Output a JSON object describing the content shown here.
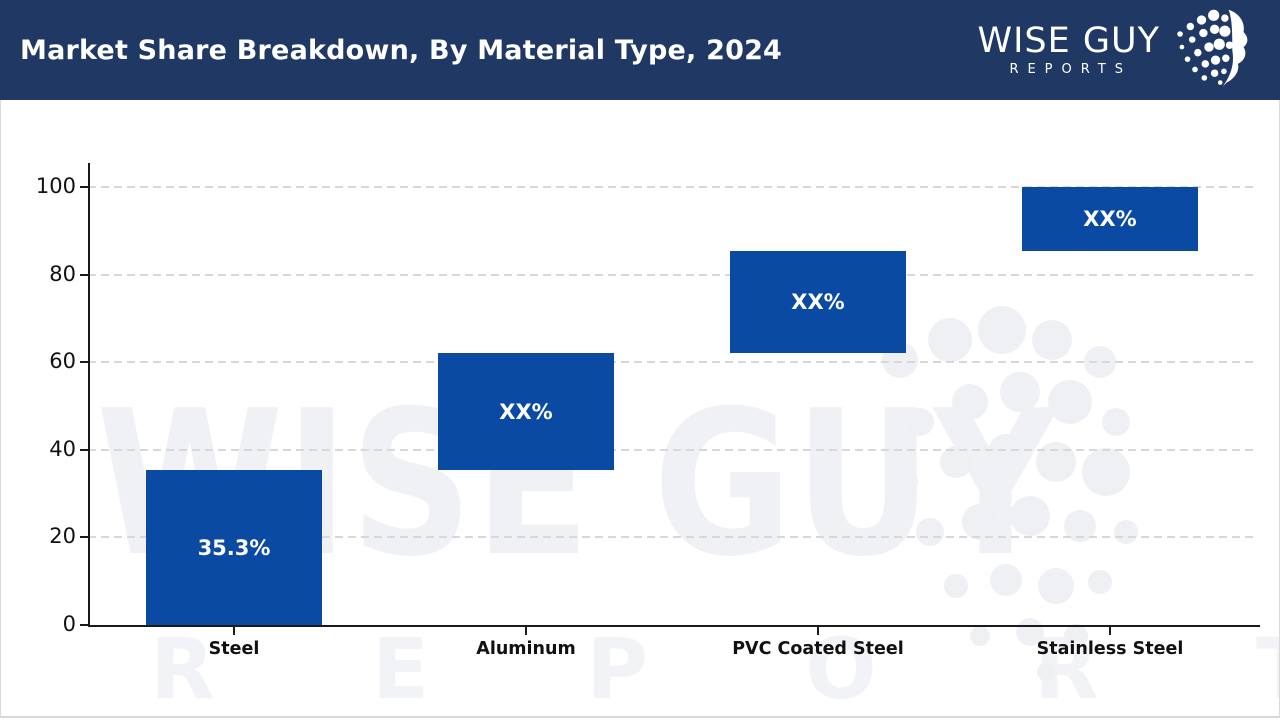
{
  "header": {
    "title": "Market Share Breakdown, By Material Type, 2024",
    "logo": {
      "line1": "WISE GUY",
      "line2": "REPORTS"
    }
  },
  "watermark": {
    "line1": "WISE GUY",
    "line2": "R E P O R T S"
  },
  "chart_data": {
    "type": "bar",
    "subtype": "waterfall-floating-bars",
    "title": "Market Share Breakdown, By Material Type, 2024",
    "categories": [
      "Steel",
      "Aluminum",
      "PVC Coated Steel",
      "Stainless Steel"
    ],
    "series": [
      {
        "name": "Market share (%)",
        "segments": [
          {
            "category": "Steel",
            "start": 0,
            "end": 35.3,
            "label": "35.3%"
          },
          {
            "category": "Aluminum",
            "start": 35.3,
            "end": 62,
            "label": "XX%"
          },
          {
            "category": "PVC Coated Steel",
            "start": 62,
            "end": 85.5,
            "label": "XX%"
          },
          {
            "category": "Stainless Steel",
            "start": 85.5,
            "end": 100,
            "label": "XX%"
          }
        ]
      }
    ],
    "yticks": [
      0,
      20,
      40,
      60,
      80,
      100
    ],
    "ylim": [
      0,
      106
    ],
    "xlabel": "",
    "ylabel": "",
    "grid": {
      "axis": "y",
      "style": "dashed",
      "color": "#d8d8d8"
    },
    "legend": "none",
    "colors": {
      "bar": "#0b4aa2",
      "bar_label": "#ffffff",
      "header_bg": "#203864",
      "axis": "#1a1a1a",
      "tick_label": "#111111",
      "watermark": "#f0f1f4"
    }
  }
}
